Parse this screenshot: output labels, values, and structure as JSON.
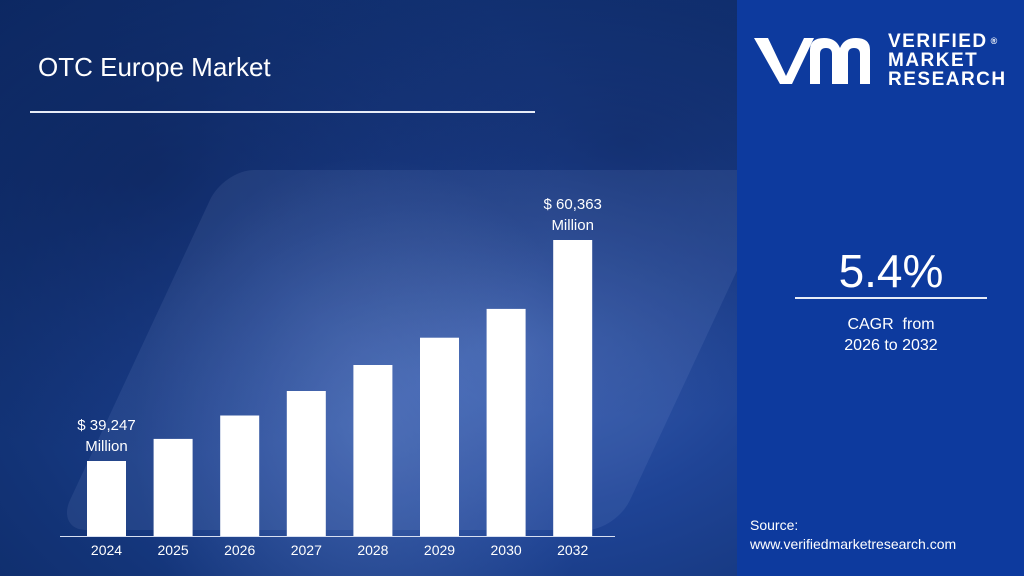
{
  "title": "OTC Europe Market",
  "brand": {
    "line1": "VERIFIED",
    "line2": "MARKET",
    "line3": "RESEARCH",
    "registered": "®",
    "logo_icon": "vmr-monogram-icon"
  },
  "cagr": {
    "value": "5.4%",
    "label_line1": "CAGR  from",
    "label_line2": "2026 to 2032"
  },
  "source": {
    "label": "Source:",
    "url": "www.verifiedmarketresearch.com"
  },
  "colors": {
    "bar": "#ffffff",
    "panel": "#0d3a9e",
    "text": "#ffffff"
  },
  "chart_data": {
    "type": "bar",
    "title": "OTC Europe Market",
    "categories": [
      "2024",
      "2025",
      "2026",
      "2027",
      "2028",
      "2029",
      "2030",
      "2032"
    ],
    "values": [
      39247,
      41360,
      43590,
      45940,
      48420,
      51030,
      53780,
      60363
    ],
    "unit": "Million",
    "ylim": [
      34000,
      62000
    ],
    "grid": false,
    "legend": "none",
    "annotations": [
      {
        "index": 0,
        "line1": "$ 39,247",
        "line2": "Million"
      },
      {
        "index": 7,
        "line1": "$ 60,363",
        "line2": "Million"
      }
    ]
  }
}
